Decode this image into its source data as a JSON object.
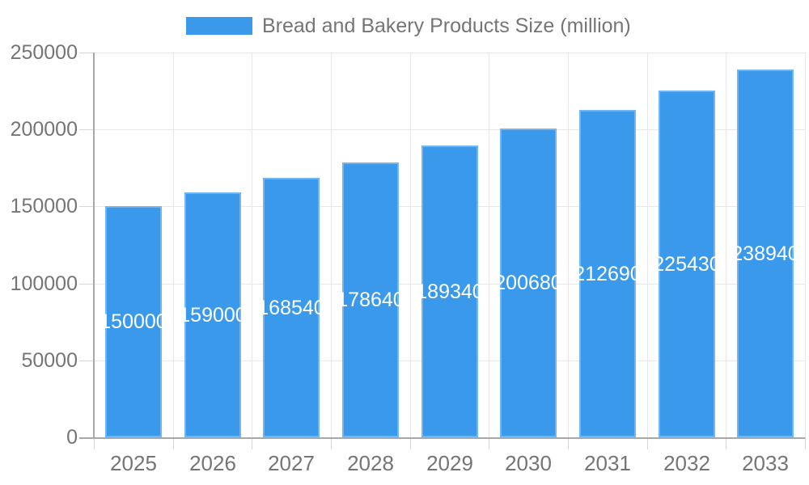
{
  "legend": {
    "label": "Bread and Bakery Products Size (million)"
  },
  "chart_data": {
    "type": "bar",
    "title": "Bread and Bakery Products Size (million)",
    "categories": [
      "2025",
      "2026",
      "2027",
      "2028",
      "2029",
      "2030",
      "2031",
      "2032",
      "2033"
    ],
    "series": [
      {
        "name": "Bread and Bakery Products Size (million)",
        "values": [
          150000,
          159000,
          168540,
          178640,
          189340,
          200680,
          212690,
          225430,
          238940
        ]
      }
    ],
    "bar_labels": [
      150000,
      159000,
      168540,
      178640,
      189340,
      200680,
      212690,
      225430,
      238940
    ],
    "xlabel": "",
    "ylabel": "",
    "ylim": [
      0,
      250000
    ],
    "y_ticks": [
      0,
      50000,
      100000,
      150000,
      200000,
      250000
    ],
    "grid": true,
    "legend_position": "top",
    "colors": {
      "bar": "#3B99EC",
      "bar_label": "#FFFFFF",
      "axis_line": "#A8A8A8",
      "grid_line": "#E8E8E8",
      "tick_line": "#D6D6D6",
      "text": "#757575",
      "background": "#FFFFFF"
    }
  }
}
